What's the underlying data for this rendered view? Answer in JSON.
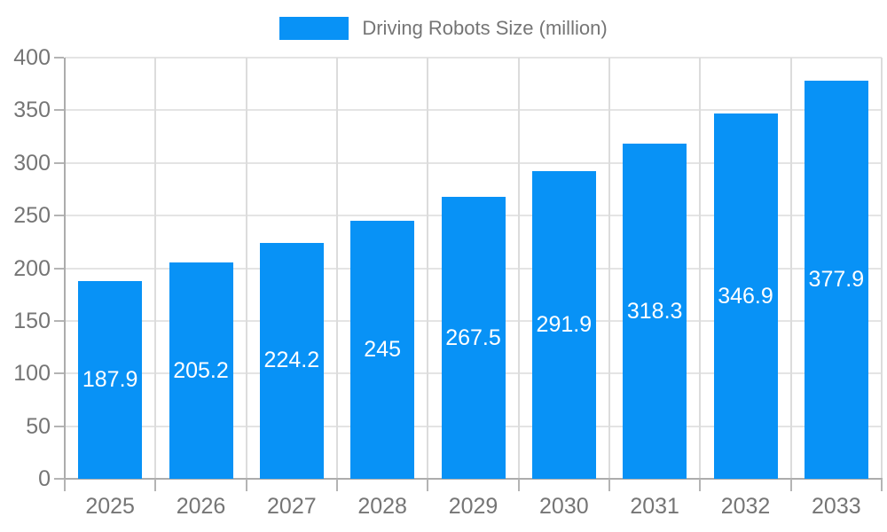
{
  "legend": {
    "label": "Driving Robots Size (million)"
  },
  "colors": {
    "bar": "#0892F6",
    "value_text": "#FFFFFF",
    "axis_text": "#757575",
    "legend_text": "#757575",
    "grid_horizontal": "#E4E4E4",
    "grid_vertical": "#DCDCDC",
    "axis_line": "#ACACAC",
    "tick_mark": "#B4B4B4",
    "background": "#FFFFFF"
  },
  "chart_data": {
    "type": "bar",
    "title": "Driving Robots Size (million)",
    "series_name": "Driving Robots Size (million)",
    "categories": [
      "2025",
      "2026",
      "2027",
      "2028",
      "2029",
      "2030",
      "2031",
      "2032",
      "2033"
    ],
    "values": [
      187.9,
      205.2,
      224.2,
      245,
      267.5,
      291.9,
      318.3,
      346.9,
      377.9
    ],
    "value_labels": [
      "187.9",
      "205.2",
      "224.2",
      "245",
      "267.5",
      "291.9",
      "318.3",
      "346.9",
      "377.9"
    ],
    "xlabel": "",
    "ylabel": "",
    "ylim": [
      0,
      400
    ],
    "yticks": [
      0,
      50,
      100,
      150,
      200,
      250,
      300,
      350,
      400
    ],
    "grid": true,
    "legend_position": "top",
    "bar_label_position": "center"
  }
}
